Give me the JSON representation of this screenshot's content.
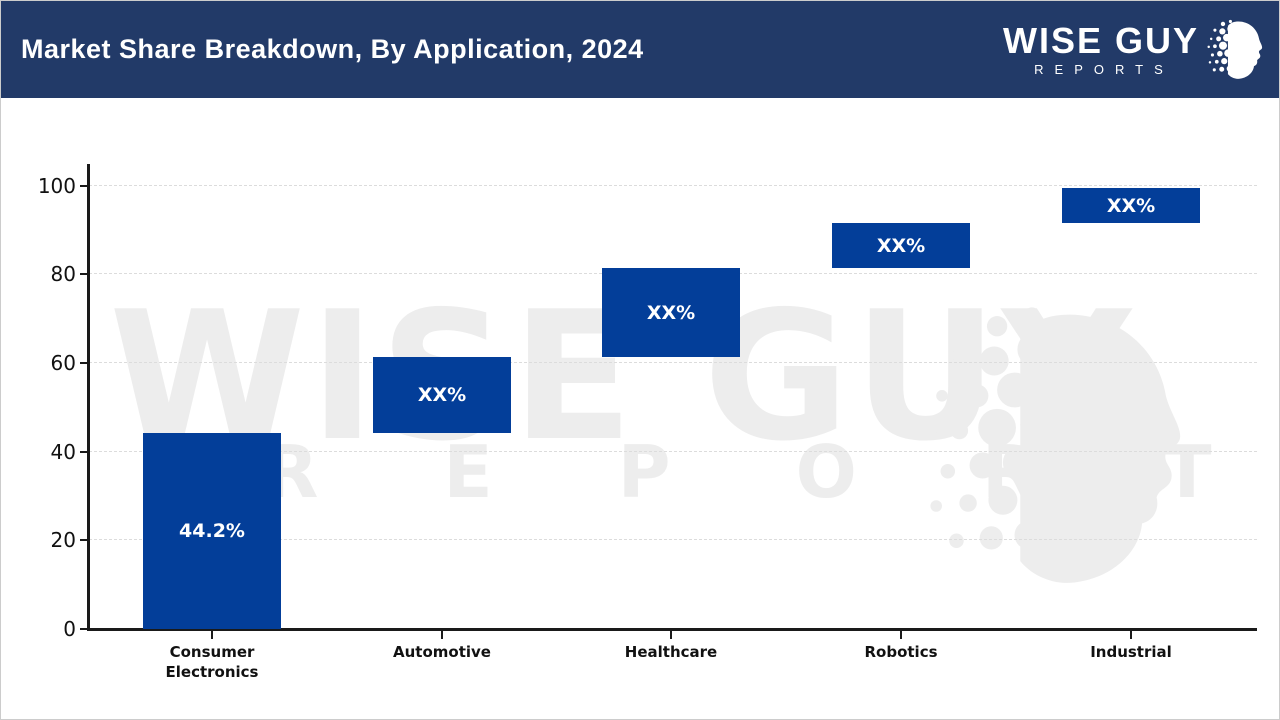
{
  "header": {
    "title": "Market Share Breakdown, By Application, 2024",
    "logo": {
      "line1": "WISE GUY",
      "line2": "REPORTS",
      "head_icon": "dotted-face-profile-icon"
    }
  },
  "watermark": {
    "line1": "WISE GUY",
    "line2": "R E P O R T S",
    "head_icon": "dotted-face-profile-icon"
  },
  "colors": {
    "header_bg": "#223a68",
    "bar": "#033e99",
    "bar_label": "#ffffff",
    "grid": "#dcdcdc",
    "axis": "#1a1a1a",
    "watermark": "#ededed",
    "page_border": "#cccccc"
  },
  "chart_data": {
    "type": "bar",
    "subtype": "waterfall",
    "title": "Market Share Breakdown, By Application, 2024",
    "xlabel": "",
    "ylabel": "",
    "ylim": [
      0,
      100
    ],
    "yticks": [
      0,
      20,
      40,
      60,
      80,
      100
    ],
    "grid": "horizontal-dashed",
    "legend": "none",
    "bar_color": "#033e99",
    "categories": [
      "Consumer Electronics",
      "Automotive",
      "Healthcare",
      "Robotics",
      "Industrial"
    ],
    "segments": [
      {
        "category": "Consumer Electronics",
        "start": 0,
        "end": 44.2,
        "label": "44.2%"
      },
      {
        "category": "Automotive",
        "start": 44.2,
        "end": 61.3,
        "label": "XX%"
      },
      {
        "category": "Healthcare",
        "start": 61.3,
        "end": 81.4,
        "label": "XX%"
      },
      {
        "category": "Robotics",
        "start": 81.4,
        "end": 91.5,
        "label": "XX%"
      },
      {
        "category": "Industrial",
        "start": 91.5,
        "end": 99.4,
        "label": "XX%"
      }
    ]
  }
}
